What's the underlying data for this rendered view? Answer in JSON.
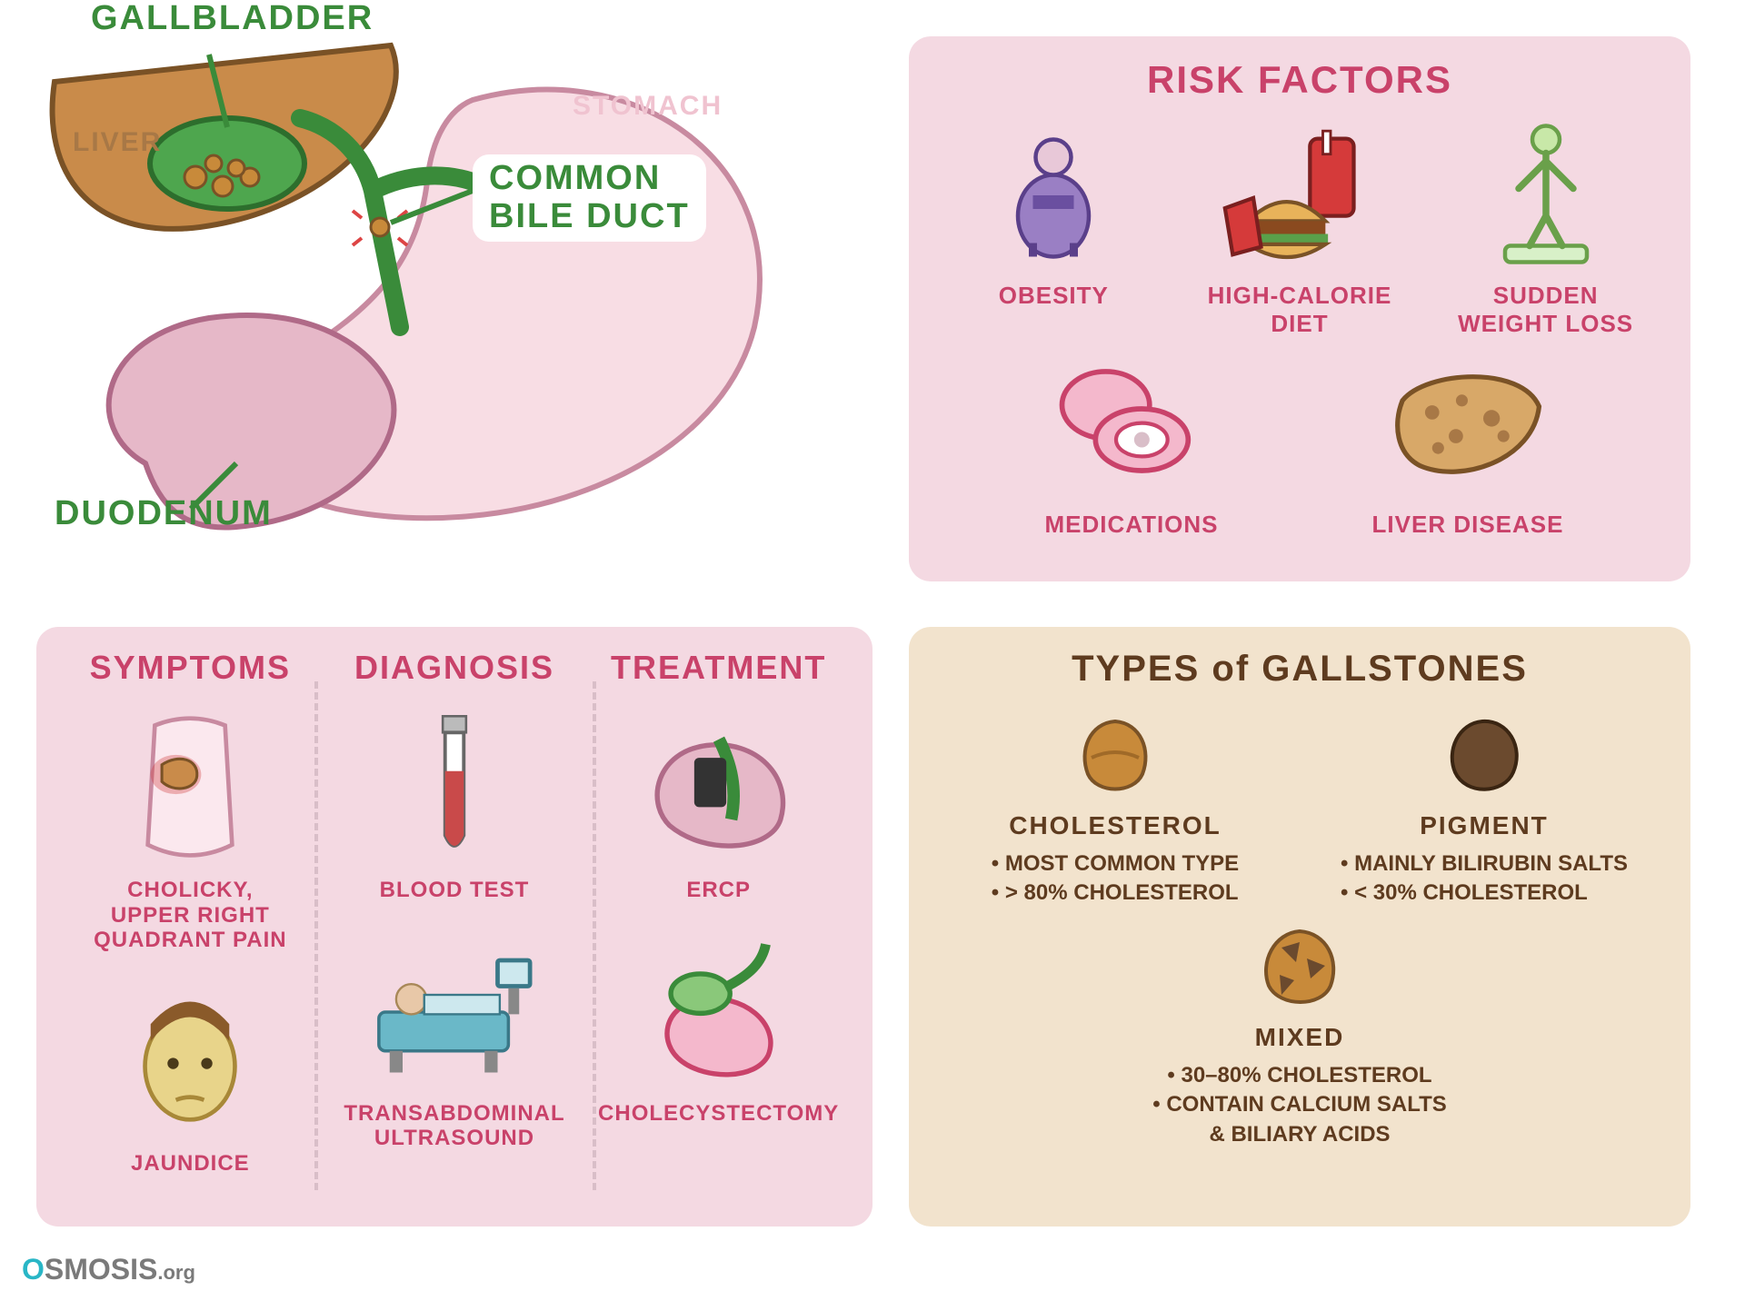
{
  "colors": {
    "green": "#3a8b3a",
    "pink_panel": "#f4d9e2",
    "tan_panel": "#f2e3cd",
    "risk_text": "#c9426a",
    "types_text": "#5e3b1f",
    "liver_brown": "#a87846",
    "stomach_pink": "#f0c3d0",
    "logo_teal": "#29b6c6",
    "logo_grey": "#7a7a7a"
  },
  "anatomy": {
    "gallbladder": "GALLBLADDER",
    "common_bile_duct_l1": "COMMON",
    "common_bile_duct_l2": "BILE DUCT",
    "duodenum": "DUODENUM",
    "liver": "LIVER",
    "stomach": "STOMACH"
  },
  "risk": {
    "title": "RISK FACTORS",
    "items": [
      {
        "label": "OBESITY",
        "icon": "obesity"
      },
      {
        "label": "HIGH-CALORIE\nDIET",
        "icon": "fastfood"
      },
      {
        "label": "SUDDEN\nWEIGHT LOSS",
        "icon": "weightloss"
      },
      {
        "label": "MEDICATIONS",
        "icon": "medications"
      },
      {
        "label": "LIVER DISEASE",
        "icon": "liver-disease"
      }
    ]
  },
  "sdt": {
    "symptoms": {
      "title": "SYMPTOMS",
      "items": [
        {
          "label": "CHOLICKY,\nUPPER RIGHT\nQUADRANT PAIN",
          "icon": "torso-pain"
        },
        {
          "label": "JAUNDICE",
          "icon": "jaundice-face"
        }
      ]
    },
    "diagnosis": {
      "title": "DIAGNOSIS",
      "items": [
        {
          "label": "BLOOD TEST",
          "icon": "blood-tube"
        },
        {
          "label": "TRANSABDOMINAL\nULTRASOUND",
          "icon": "ultrasound"
        }
      ]
    },
    "treatment": {
      "title": "TREATMENT",
      "items": [
        {
          "label": "ERCP",
          "icon": "ercp"
        },
        {
          "label": "CHOLECYSTECTOMY",
          "icon": "cholecystectomy"
        }
      ]
    }
  },
  "types": {
    "title": "TYPES of GALLSTONES",
    "cholesterol": {
      "name": "CHOLESTEROL",
      "bullets": [
        "MOST COMMON TYPE",
        "> 80% CHOLESTEROL"
      ],
      "stone_color": "#c88a3a",
      "stone_shadow": "#a06a28"
    },
    "pigment": {
      "name": "PIGMENT",
      "bullets": [
        "MAINLY BILIRUBIN SALTS",
        "< 30% CHOLESTEROL"
      ],
      "stone_color": "#6b4a2e",
      "stone_shadow": "#4a3018"
    },
    "mixed": {
      "name": "MIXED",
      "bullets": [
        "30–80% CHOLESTEROL",
        "CONTAIN CALCIUM SALTS\n   & BILIARY ACIDS"
      ],
      "stone_color": "#c88a3a",
      "stone_patch": "#6b4a2e"
    }
  },
  "logo": {
    "text_left": "O",
    "text_rest": "SMOSIS",
    "suffix": ".org"
  }
}
